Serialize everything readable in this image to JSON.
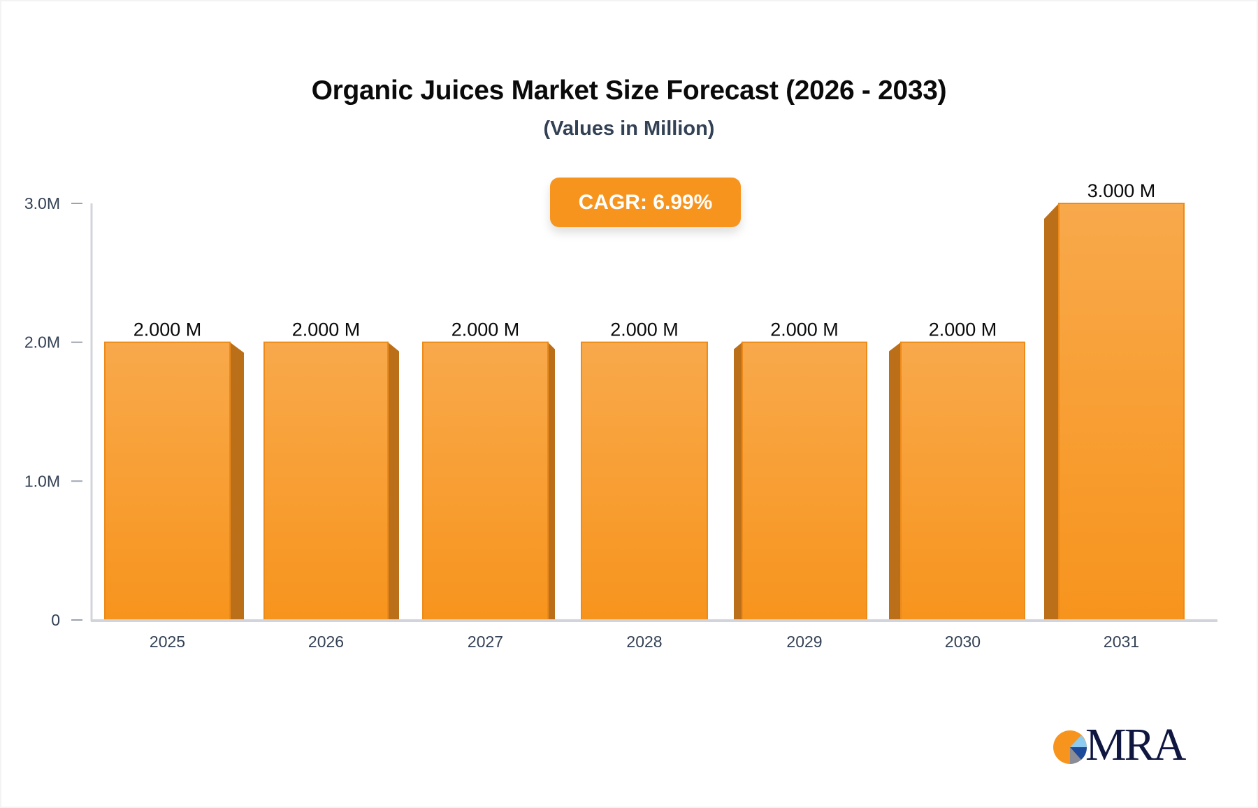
{
  "header": {
    "title": "Organic Juices Market Size Forecast (2026 - 2033)",
    "subtitle": "(Values in Million)"
  },
  "badge": {
    "cagr_label": "CAGR: 6.99%"
  },
  "logo": {
    "text": "MRA",
    "icon": "pie-chart-logo-icon"
  },
  "colors": {
    "bar_front_top": "#f8a94b",
    "bar_front_bottom": "#f7941d",
    "bar_side": "#bb6f19",
    "axis": "#d1d5db",
    "tick_text": "#334155",
    "badge": "#f7941d",
    "logo_text": "#0f1640"
  },
  "axis": {
    "y_ticks": [
      "0",
      "1.0M",
      "2.0M",
      "3.0M"
    ],
    "x_ticks": [
      "2025",
      "2026",
      "2027",
      "2028",
      "2029",
      "2030",
      "2031"
    ]
  },
  "chart_data": {
    "type": "bar",
    "title": "Organic Juices Market Size Forecast (2026 - 2033)",
    "subtitle": "(Values in Million)",
    "categories": [
      "2025",
      "2026",
      "2027",
      "2028",
      "2029",
      "2030",
      "2031"
    ],
    "values": [
      2.0,
      2.0,
      2.0,
      2.0,
      2.0,
      2.0,
      3.0
    ],
    "data_labels": [
      "2.000 M",
      "2.000 M",
      "2.000 M",
      "2.000 M",
      "2.000 M",
      "2.000 M",
      "3.000 M"
    ],
    "xlabel": "",
    "ylabel": "",
    "y_tick_labels": [
      "0",
      "1.0M",
      "2.0M",
      "3.0M"
    ],
    "ylim": [
      0,
      3.0
    ],
    "unit": "Million",
    "annotation": "CAGR: 6.99%",
    "grid": false,
    "legend": null
  }
}
